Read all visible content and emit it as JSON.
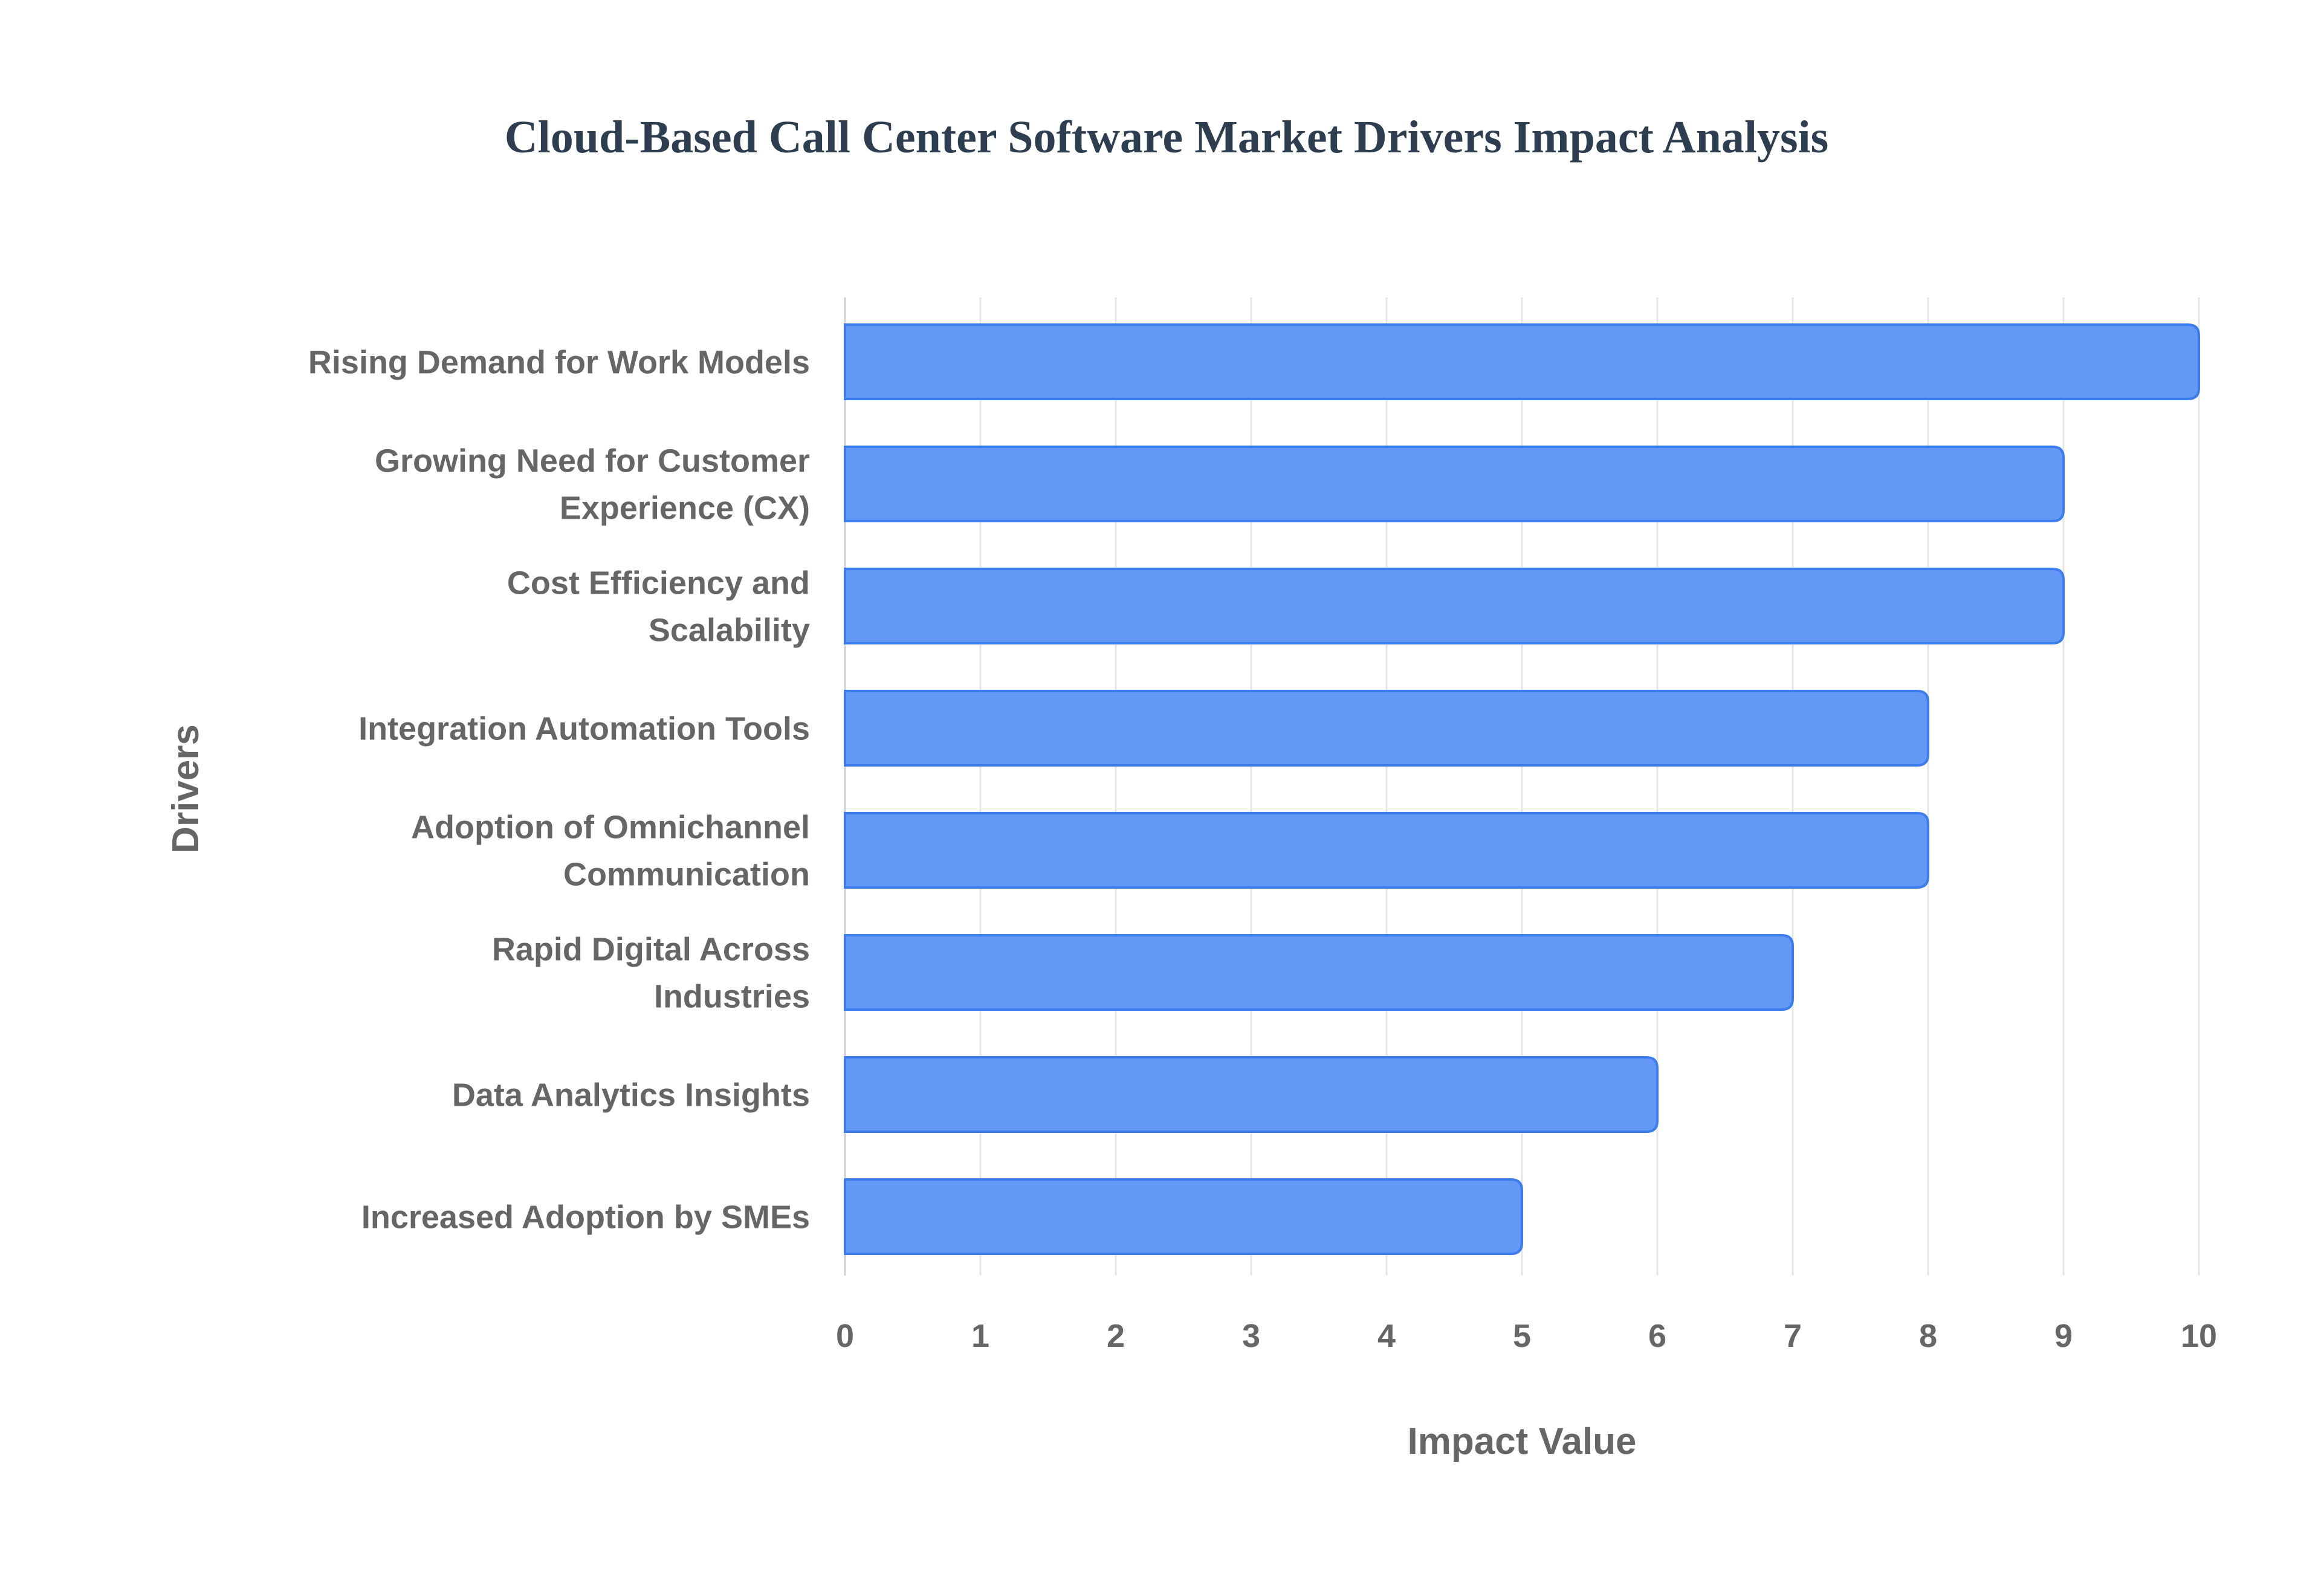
{
  "chart_data": {
    "type": "bar",
    "orientation": "horizontal",
    "title": "Cloud-Based Call Center Software Market Drivers Impact Analysis",
    "xlabel": "Impact Value",
    "ylabel": "Drivers",
    "xlim": [
      0,
      10
    ],
    "xticks": [
      "0",
      "1",
      "2",
      "3",
      "4",
      "5",
      "6",
      "7",
      "8",
      "9",
      "10"
    ],
    "grid": true,
    "categories": [
      [
        "Rising Demand for Work Models"
      ],
      [
        "Growing Need for Customer",
        "Experience (CX)"
      ],
      [
        "Cost Efficiency and",
        "Scalability"
      ],
      [
        "Integration Automation Tools"
      ],
      [
        "Adoption of Omnichannel",
        "Communication"
      ],
      [
        "Rapid Digital Across",
        "Industries"
      ],
      [
        "Data Analytics Insights"
      ],
      [
        "Increased Adoption by SMEs"
      ]
    ],
    "values": [
      10,
      9,
      9,
      8,
      8,
      7,
      6,
      5
    ],
    "colors": {
      "bar_fill": "#6399f5",
      "bar_stroke": "#3b7ded",
      "grid": "#e6e6e6",
      "text": "#666666",
      "title": "#2c3e50"
    }
  }
}
